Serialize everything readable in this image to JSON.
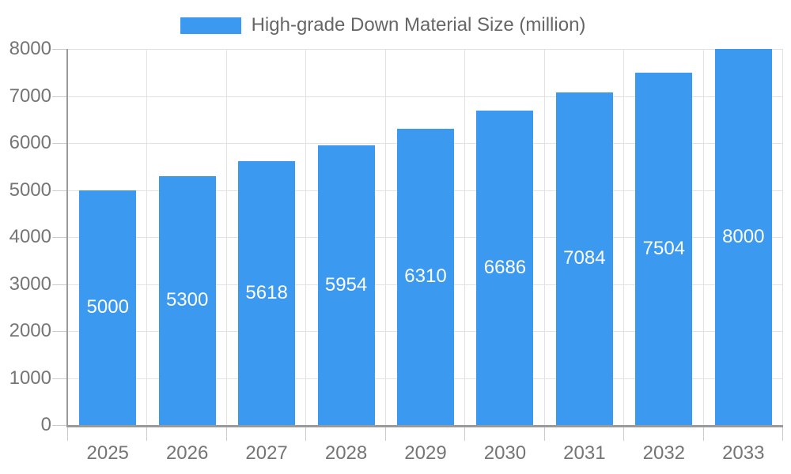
{
  "legend": {
    "series_label": "High-grade Down Material Size (million)",
    "swatch_color": "#3B99F0"
  },
  "chart_data": {
    "type": "bar",
    "title": "High-grade Down Material Size (million)",
    "categories": [
      "2025",
      "2026",
      "2027",
      "2028",
      "2029",
      "2030",
      "2031",
      "2032",
      "2033"
    ],
    "values": [
      5000,
      5300,
      5618,
      5954,
      6310,
      6686,
      7084,
      7504,
      8000
    ],
    "series": [
      {
        "name": "High-grade Down Material Size (million)",
        "values": [
          5000,
          5300,
          5618,
          5954,
          6310,
          6686,
          7084,
          7504,
          8000
        ]
      }
    ],
    "xlabel": "",
    "ylabel": "",
    "ylim": [
      0,
      8000
    ],
    "y_ticks": [
      0,
      1000,
      2000,
      3000,
      4000,
      5000,
      6000,
      7000,
      8000
    ],
    "grid": "on",
    "legend_position": "top-center",
    "bar_labels_shown": true,
    "bar_label_placement": "centered-inside-bar"
  },
  "colors": {
    "background": "#FFFFFF",
    "bar": "#3B99F0",
    "axis_line": "#9A9A9A",
    "gridline": "#E2E2E2",
    "tick": "#CCCCCC",
    "axis_label_text": "#757575",
    "legend_text": "#666666",
    "bar_label_text": "#FFFFFF"
  }
}
